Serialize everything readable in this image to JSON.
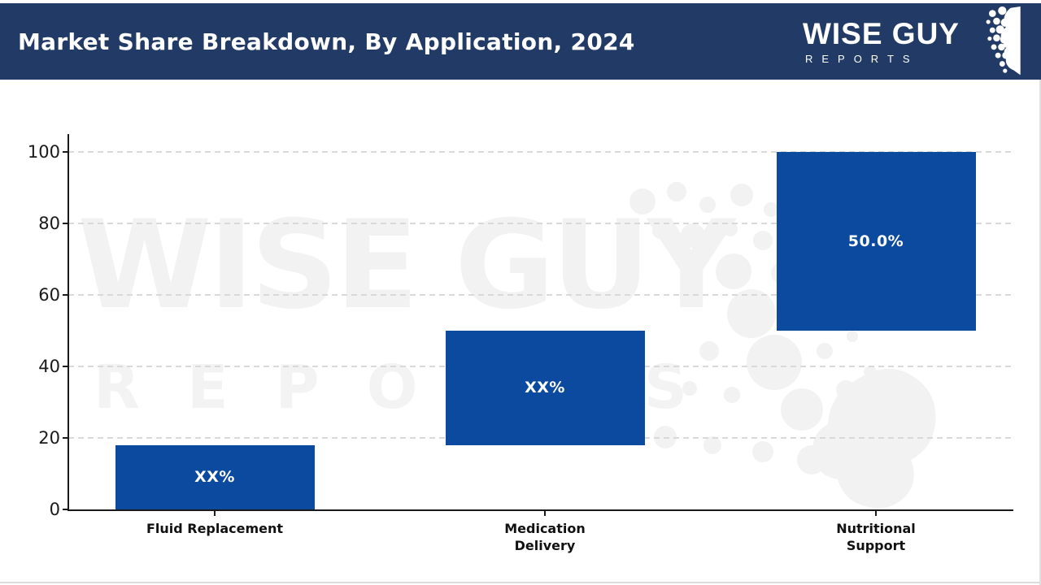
{
  "header": {
    "title": "Market Share Breakdown, By Application, 2024",
    "logo": {
      "line1": "WISE GUY",
      "line2": "REPORTS"
    }
  },
  "watermark": {
    "line1": "WISE GUY",
    "line2": "REPORTS"
  },
  "chart_data": {
    "type": "bar",
    "subtype": "waterfall",
    "title": "Market Share Breakdown, By Application, 2024",
    "categories": [
      "Fluid Replacement",
      "Medication\nDelivery",
      "Nutritional\nSupport"
    ],
    "segments": [
      {
        "category": "Fluid Replacement",
        "start": 0,
        "end": 18,
        "label": "XX%"
      },
      {
        "category": "Medication Delivery",
        "start": 18,
        "end": 50,
        "label": "XX%"
      },
      {
        "category": "Nutritional Support",
        "start": 50,
        "end": 100,
        "label": "50.0%"
      }
    ],
    "yticks": [
      0,
      20,
      40,
      60,
      80,
      100
    ],
    "ylim": [
      0,
      105
    ],
    "xlabel": "",
    "ylabel": "",
    "grid": "horizontal-dashed",
    "legend": "none",
    "bar_color": "#0b4a9f",
    "bar_label_color": "#ffffff"
  },
  "colors": {
    "header_bg": "#213a66",
    "bar": "#0b4a9f",
    "gridline": "#d9d9d9",
    "axis": "#1a1a1a",
    "watermark": "#f2f2f2"
  }
}
